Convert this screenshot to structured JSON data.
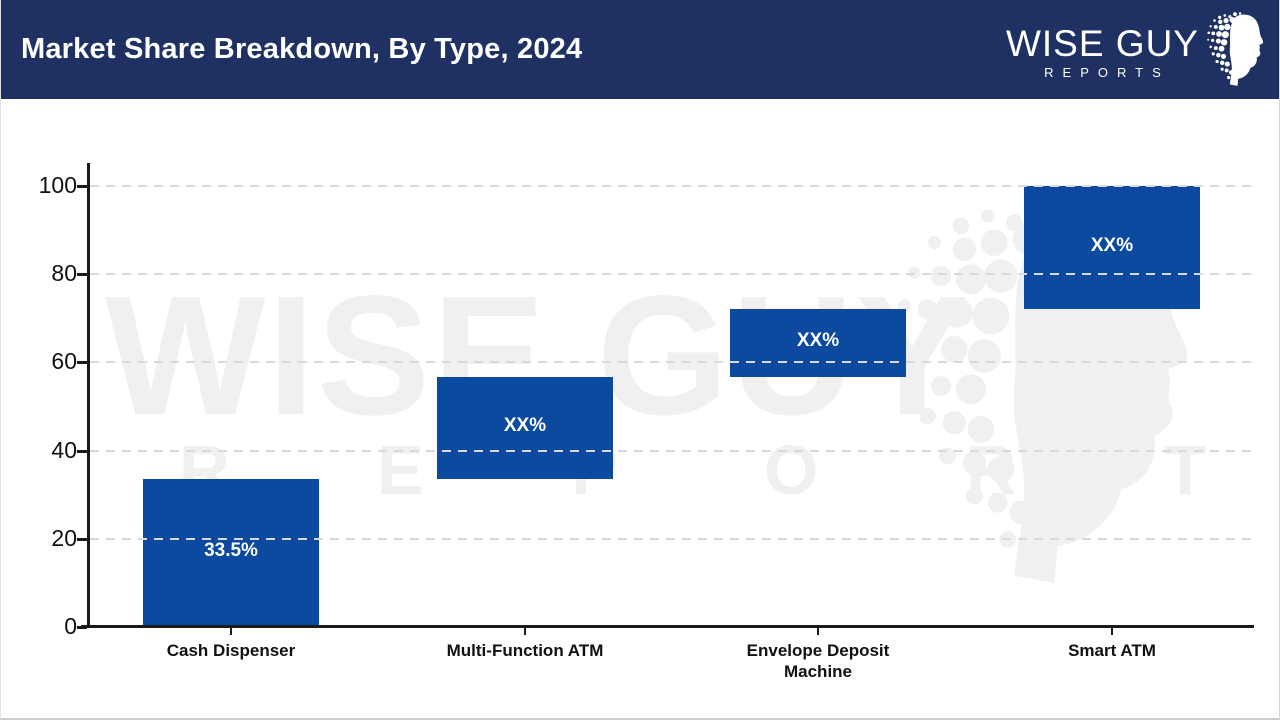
{
  "header": {
    "title": "Market Share Breakdown, By Type, 2024",
    "background_color": "#1f3163",
    "logo": {
      "primary": "WISE GUY",
      "secondary": "REPORTS"
    }
  },
  "watermark": {
    "primary": "WISE GUY",
    "secondary": "R E P O R T S",
    "color": "#f0f0f2"
  },
  "chart_data": {
    "type": "bar",
    "variant": "waterfall",
    "title": "Market Share Breakdown, By Type, 2024",
    "categories": [
      "Cash Dispenser",
      "Multi-Function ATM",
      "Envelope Deposit\nMachine",
      "Smart ATM"
    ],
    "segments": [
      {
        "name": "Cash Dispenser",
        "start": 0,
        "end": 33.5,
        "label": "33.5%"
      },
      {
        "name": "Multi-Function ATM",
        "start": 33.5,
        "end": 56.8,
        "label": "XX%"
      },
      {
        "name": "Envelope Deposit Machine",
        "start": 56.8,
        "end": 72.1,
        "label": "XX%"
      },
      {
        "name": "Smart ATM",
        "start": 72.1,
        "end": 100,
        "label": "XX%"
      }
    ],
    "y_ticks": [
      0,
      20,
      40,
      60,
      80,
      100
    ],
    "ylim": [
      0,
      105
    ],
    "xlabel": "",
    "ylabel": "",
    "legend": "none",
    "grid": {
      "horizontal": true,
      "style": "dashed",
      "color": "#d9d9d9",
      "drawn_over_bars": true
    },
    "bar_color": "#0b4a9e",
    "bar_label_color": "#ffffff",
    "axis_color": "#1a1a1a"
  }
}
